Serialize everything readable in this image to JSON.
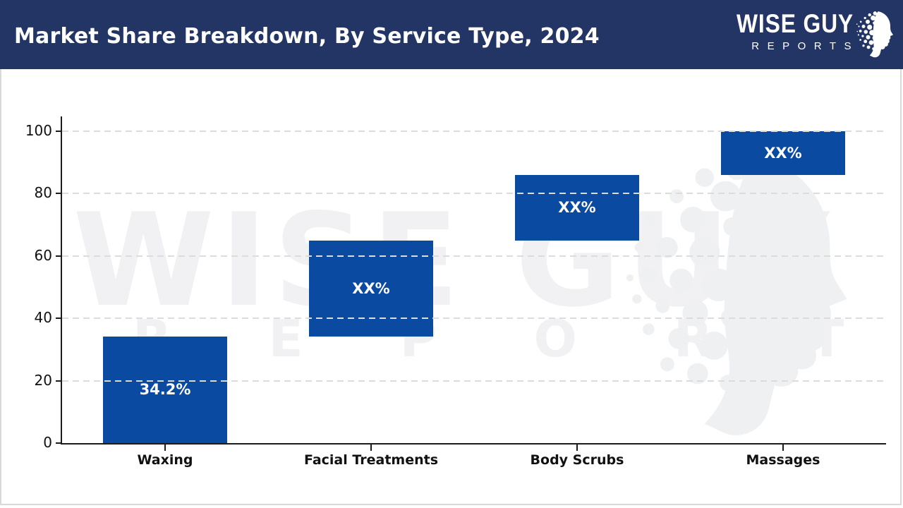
{
  "header": {
    "title": "Market Share Breakdown, By Service Type, 2024",
    "logo": {
      "line1": "WISE GUY",
      "line2": "REPORTS"
    }
  },
  "watermark": {
    "line1": "WISE GUY",
    "line2": "R E P O R T S"
  },
  "chart_data": {
    "type": "bar",
    "subtype": "waterfall",
    "title": "Market Share Breakdown, By Service Type, 2024",
    "categories": [
      "Waxing",
      "Facial Treatments",
      "Body Scrubs",
      "Massages"
    ],
    "segments": [
      {
        "category": "Waxing",
        "start": 0,
        "end": 34.2,
        "label": "34.2%"
      },
      {
        "category": "Facial Treatments",
        "start": 34.2,
        "end": 65,
        "label": "XX%"
      },
      {
        "category": "Body Scrubs",
        "start": 65,
        "end": 86,
        "label": "XX%"
      },
      {
        "category": "Massages",
        "start": 86,
        "end": 100,
        "label": "XX%"
      }
    ],
    "xlabel": "",
    "ylabel": "",
    "ylim": [
      0,
      105
    ],
    "yticks": [
      0,
      20,
      40,
      60,
      80,
      100
    ],
    "grid": "horizontal-dashed",
    "legend": false,
    "colors": {
      "bar": "#0b4aa1",
      "grid": "#dcdcdc",
      "axis": "#1c1c1c",
      "header_bg": "#233565",
      "bar_label_text": "#ffffff",
      "watermark": "#f1f1f4"
    }
  }
}
